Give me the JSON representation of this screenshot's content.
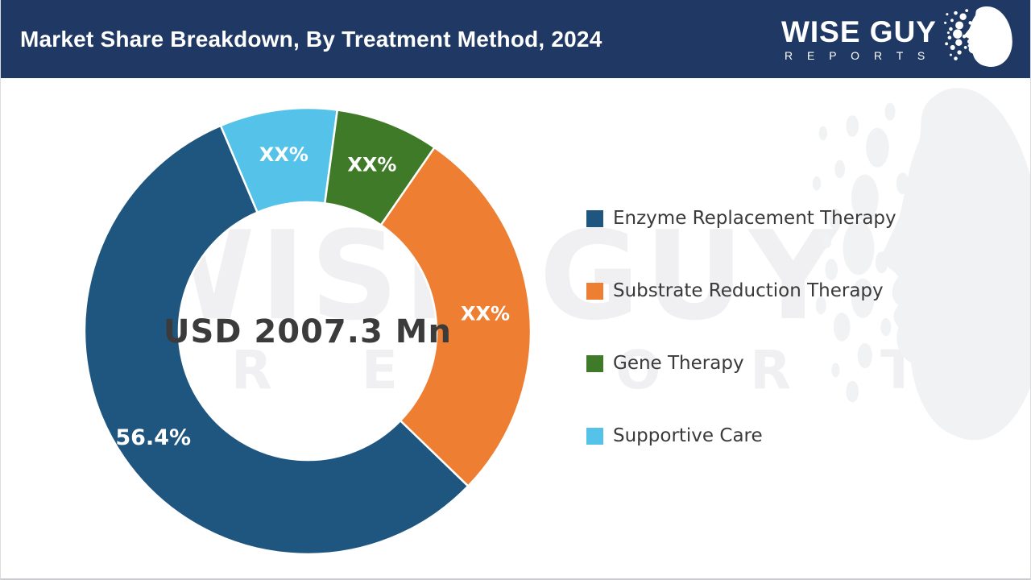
{
  "header": {
    "title": "Market Share Breakdown, By Treatment Method, 2024",
    "bg_color": "#1F3864",
    "logo": {
      "line1": "WISE GUY",
      "line2": "R E P O R T S"
    }
  },
  "watermark": {
    "line1": "WISE GUY",
    "line2": "R E P O R T S"
  },
  "chart_data": {
    "type": "pie",
    "subtype": "donut",
    "title": "Market Share Breakdown, By Treatment Method, 2024",
    "center_label": "USD 2007.3 Mn",
    "legend_position": "right",
    "start_angle_deg": 134,
    "draw_order": [
      0,
      3,
      2,
      1
    ],
    "slices": [
      {
        "label": "Enzyme Replacement Therapy",
        "value": 56.4,
        "display_label": "56.4%",
        "color": "#1F567F"
      },
      {
        "label": "Substrate Reduction Therapy",
        "value": 27.6,
        "display_label": "XX%",
        "color": "#EE7E31"
      },
      {
        "label": "Gene Therapy",
        "value": 7.5,
        "display_label": "XX%",
        "color": "#3F7A28"
      },
      {
        "label": "Supportive Care",
        "value": 8.5,
        "display_label": "XX%",
        "color": "#55C3E9"
      }
    ],
    "colors": {
      "label_text": "#FFFFFF",
      "center_text": "#3B3B3B",
      "separator": "#FFFFFF"
    }
  }
}
